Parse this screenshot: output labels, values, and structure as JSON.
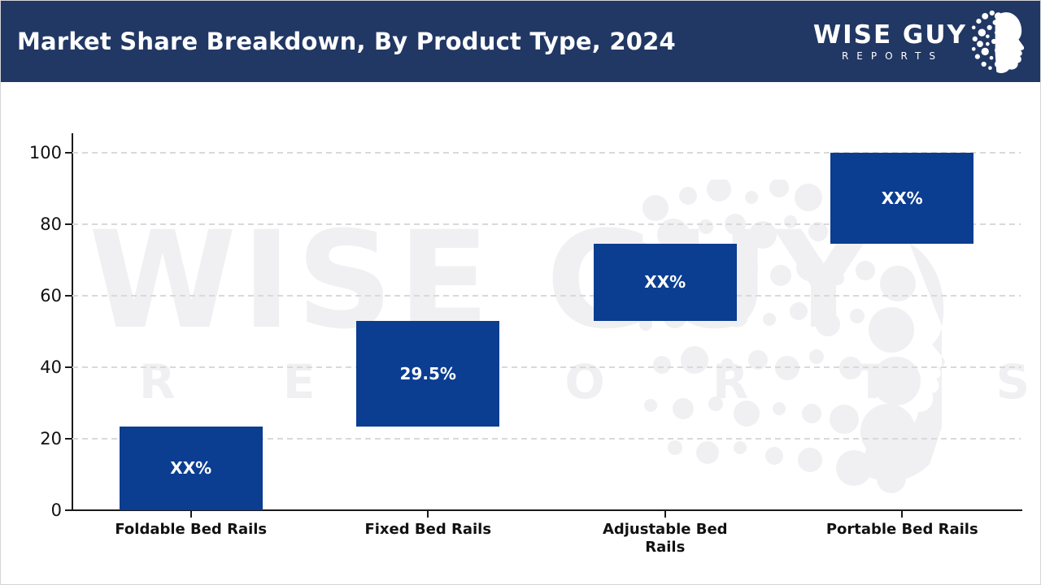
{
  "header": {
    "title": "Market Share Breakdown, By Product Type, 2024",
    "logo": {
      "line1": "WISE GUY",
      "line2": "REPORTS"
    }
  },
  "watermark": {
    "line1": "WISE GUY",
    "line2": "REPORTS"
  },
  "chart_data": {
    "type": "bar",
    "subtype": "waterfall",
    "title": "Market Share Breakdown, By Product Type, 2024",
    "categories": [
      "Foldable Bed Rails",
      "Fixed Bed Rails",
      "Adjustable Bed Rails",
      "Portable Bed Rails"
    ],
    "segments": [
      {
        "category": "Foldable Bed Rails",
        "start": 0,
        "end": 23.5,
        "label": "XX%"
      },
      {
        "category": "Fixed Bed Rails",
        "start": 23.5,
        "end": 53,
        "label": "29.5%"
      },
      {
        "category": "Adjustable Bed Rails",
        "start": 53,
        "end": 74.5,
        "label": "XX%"
      },
      {
        "category": "Portable Bed Rails",
        "start": 74.5,
        "end": 100,
        "label": "XX%"
      }
    ],
    "yticks": [
      0,
      20,
      40,
      60,
      80,
      100
    ],
    "ylim": [
      0,
      100
    ],
    "xlabel": "",
    "ylabel": "",
    "grid": "horizontal-dashed",
    "legend": "none",
    "bar_color": "#0b3d91",
    "bar_label_color": "#ffffff"
  },
  "colors": {
    "header_bg": "#213764",
    "bar": "#0b3d91",
    "grid": "#d9d9d9",
    "axis": "#1a1a1a",
    "watermark": "#f0f0f2"
  }
}
